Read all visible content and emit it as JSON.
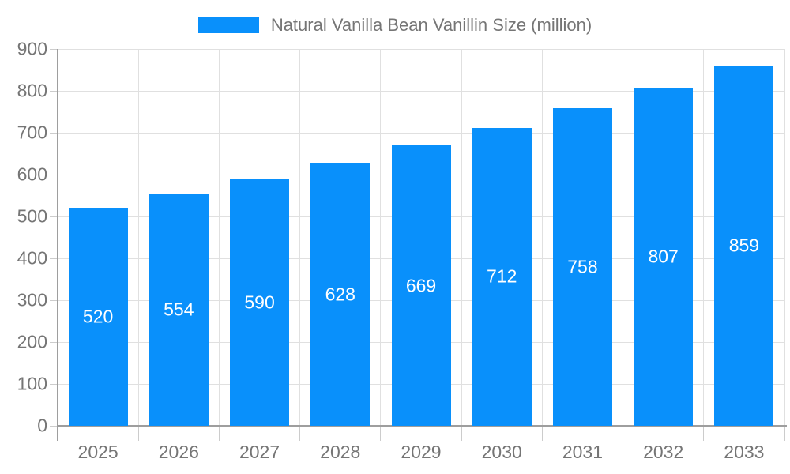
{
  "legend": {
    "series_label": "Natural Vanilla Bean Vanillin Size (million)"
  },
  "colors": {
    "bar": "#0990fb",
    "axis_text": "#757575",
    "value_label_text": "#ffffff",
    "grid_line": "#e0e0e0",
    "axis_line": "#9e9e9e",
    "tick_line": "#cccccc",
    "background": "#ffffff"
  },
  "chart_data": {
    "type": "bar",
    "title": "Natural Vanilla Bean Vanillin Size (million)",
    "categories": [
      "2025",
      "2026",
      "2027",
      "2028",
      "2029",
      "2030",
      "2031",
      "2032",
      "2033"
    ],
    "values": [
      520,
      554,
      590,
      628,
      669,
      712,
      758,
      807,
      859
    ],
    "xlabel": "",
    "ylabel": "",
    "ylim": [
      0,
      900
    ],
    "ytick_step": 100,
    "grid": true,
    "legend_position": "top",
    "value_labels": "inside-center"
  }
}
